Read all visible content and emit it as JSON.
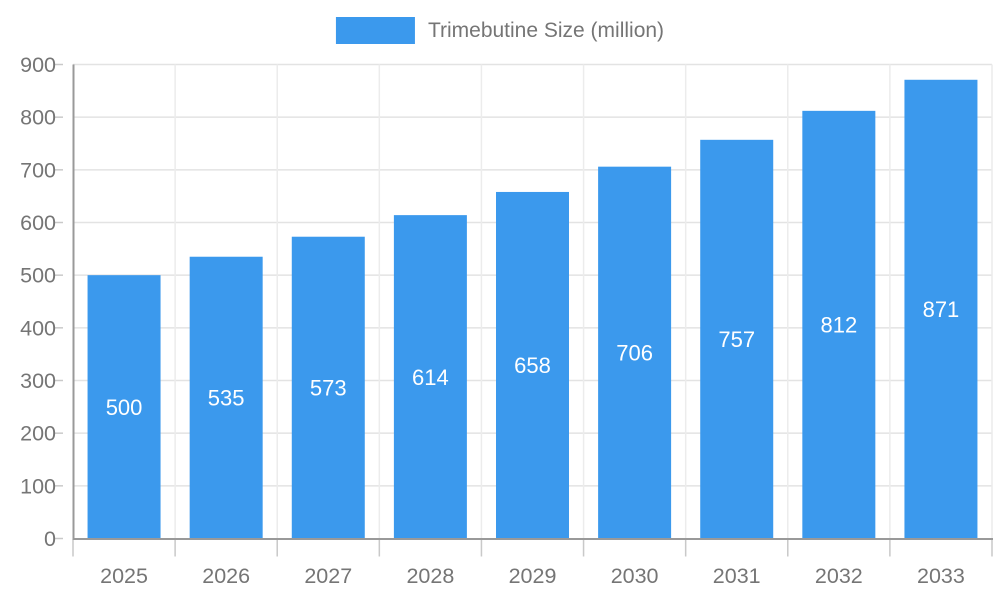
{
  "legend": {
    "label": "Trimebutine Size (million)"
  },
  "colors": {
    "bar": "#3b99ed",
    "bar_label": "#ffffff",
    "axis_line": "#999999",
    "tick": "#c9c9c9",
    "grid_h": "#e3e3e3",
    "grid_v": "#ececec",
    "axis_text": "#757575",
    "background": "#ffffff"
  },
  "chart_data": {
    "type": "bar",
    "title": "",
    "xlabel": "",
    "ylabel": "",
    "categories": [
      "2025",
      "2026",
      "2027",
      "2028",
      "2029",
      "2030",
      "2031",
      "2032",
      "2033"
    ],
    "series": [
      {
        "name": "Trimebutine Size (million)",
        "values": [
          500,
          535,
          573,
          614,
          658,
          706,
          757,
          812,
          871
        ]
      }
    ],
    "ylim": [
      0,
      900
    ],
    "ytick_step": 100,
    "grid": true,
    "legend_position": "top-center",
    "value_labels": "inside-center"
  }
}
